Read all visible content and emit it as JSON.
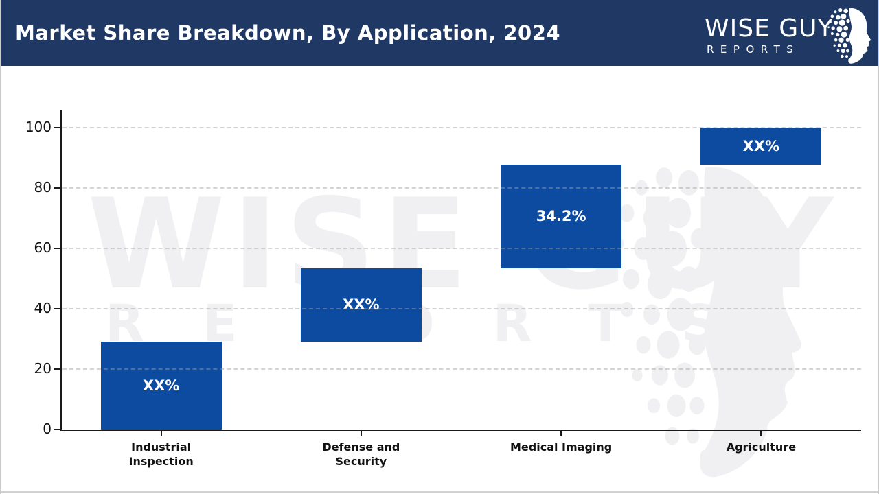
{
  "header": {
    "logo": {
      "primary": "WISE GUY",
      "secondary": "REPORTS"
    }
  },
  "watermark": {
    "line1": "WISE GUY",
    "line2": "REPORTS"
  },
  "colors": {
    "header_bg": "#1f3864",
    "bar_color": "#0c4ba0",
    "bar_label_color": "#ffffff",
    "watermark_color": "#f0f0f2",
    "grid_color": "#d9d9d9",
    "axis_color": "#1a1a1a"
  },
  "chart_data": {
    "type": "bar",
    "variant": "waterfall",
    "title": "Market Share Breakdown, By Application, 2024",
    "categories": [
      "Industrial Inspection",
      "Defense and Security",
      "Medical Imaging",
      "Agriculture"
    ],
    "category_lines": [
      [
        "Industrial",
        "Inspection"
      ],
      [
        "Defense and",
        "Security"
      ],
      [
        "Medical Imaging"
      ],
      [
        "Agriculture"
      ]
    ],
    "segments": [
      {
        "category": "Industrial Inspection",
        "start": 0,
        "end": 29,
        "label": "XX%"
      },
      {
        "category": "Defense and Security",
        "start": 29,
        "end": 53.5,
        "label": "XX%"
      },
      {
        "category": "Medical Imaging",
        "start": 53.5,
        "end": 87.8,
        "label": "34.2%"
      },
      {
        "category": "Agriculture",
        "start": 87.8,
        "end": 100,
        "label": "XX%"
      }
    ],
    "yticks": [
      0,
      20,
      40,
      60,
      80,
      100
    ],
    "ylim": [
      0,
      106
    ],
    "grid": "dashed-horizontal",
    "legend": "none"
  }
}
